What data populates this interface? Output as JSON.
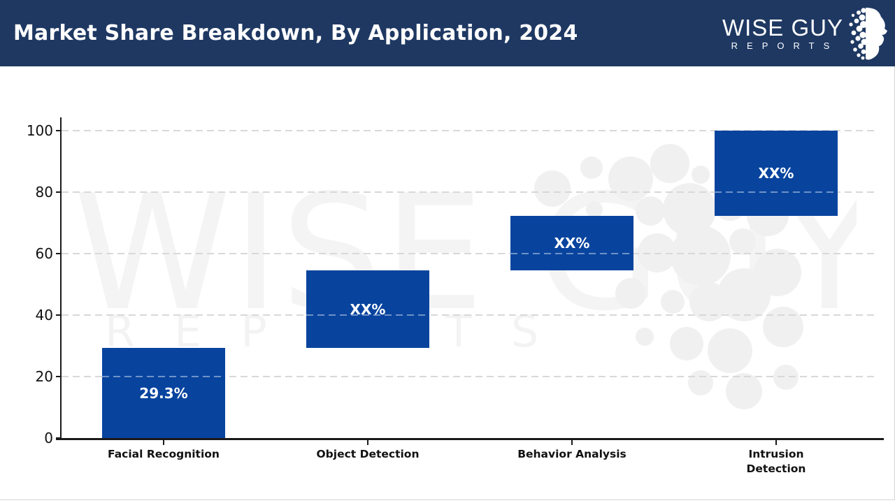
{
  "header": {
    "title": "Market Share Breakdown, By Application, 2024",
    "logo": {
      "line1": "WISE GUY",
      "line2": "REPORTS"
    }
  },
  "watermark": {
    "line1": "WISE GUY",
    "line2": "REPORTS"
  },
  "colors": {
    "header_bg": "#1e3862",
    "bar": "#08449e",
    "grid": "#d8d8d8",
    "axis": "#1a1a1a",
    "bar_label": "#ffffff",
    "tick_label": "#111111"
  },
  "chart_data": {
    "type": "bar",
    "subtype": "waterfall",
    "title": "Market Share Breakdown, By Application, 2024",
    "xlabel": "",
    "ylabel": "",
    "ylim": [
      0,
      100
    ],
    "y_ticks": [
      0,
      20,
      40,
      60,
      80,
      100
    ],
    "grid": "dashed-horizontal",
    "legend": "none",
    "categories": [
      "Facial Recognition",
      "Object Detection",
      "Behavior Analysis",
      "Intrusion Detection"
    ],
    "segments": [
      {
        "label": "Facial Recognition",
        "start": 0,
        "end": 29.3,
        "display": "29.3%"
      },
      {
        "label": "Object Detection",
        "start": 29.3,
        "end": 54.5,
        "display": "XX%"
      },
      {
        "label": "Behavior Analysis",
        "start": 54.5,
        "end": 72.3,
        "display": "XX%"
      },
      {
        "label": "Intrusion\nDetection",
        "start": 72.3,
        "end": 100,
        "display": "XX%"
      }
    ]
  }
}
